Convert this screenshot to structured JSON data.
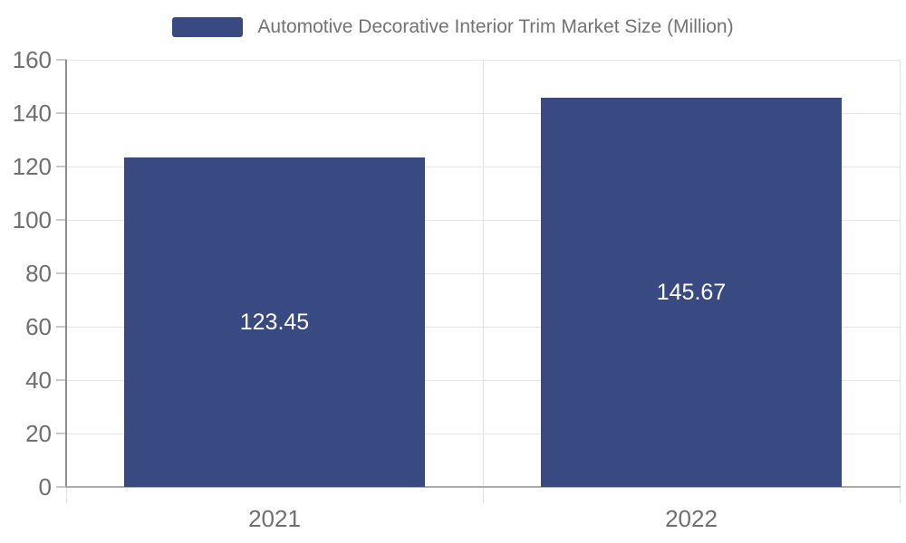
{
  "legend": {
    "label": "Automotive Decorative Interior Trim Market Size (Million)"
  },
  "colors": {
    "bar": "#394A82",
    "grid_line": "#E6E6E6",
    "split_line": "#E1E1E1",
    "y_axis_line": "#8E8E8E",
    "x_axis_line": "#ABABAB",
    "tick_mark": "#C9C9C9",
    "axis_text": "#6F6F6F",
    "legend_text": "#737373",
    "bar_value_text": "#FFFFFF",
    "background": "#FFFFFF"
  },
  "chart_data": {
    "type": "bar",
    "title": "",
    "categories": [
      "2021",
      "2022"
    ],
    "series": [
      {
        "name": "Automotive Decorative Interior Trim Market Size (Million)",
        "values": [
          123.45,
          145.67
        ],
        "display_values": [
          "123.45",
          "145.67"
        ],
        "color": "#394A82"
      }
    ],
    "value_labels_position": "inside-center",
    "xlabel": "",
    "ylabel": "",
    "ylim": [
      0,
      160
    ],
    "yticks": [
      0,
      20,
      40,
      60,
      80,
      100,
      120,
      140,
      160
    ],
    "ytick_labels": [
      "0",
      "20",
      "40",
      "60",
      "80",
      "100",
      "120",
      "140",
      "160"
    ],
    "grid": true,
    "category_split_lines": true,
    "legend_position": "top-center"
  }
}
